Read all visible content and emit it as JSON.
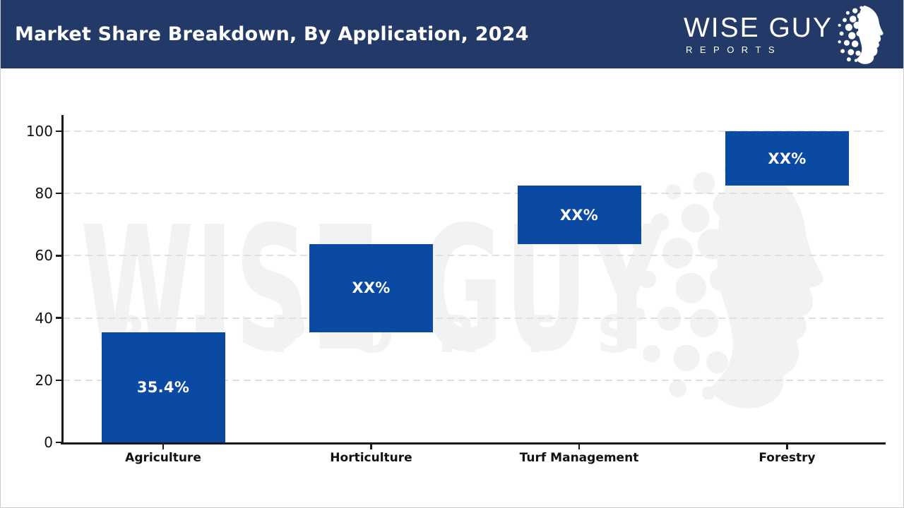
{
  "header": {
    "title": "Market Share Breakdown, By Application, 2024",
    "bg_color": "#233A68",
    "logo": {
      "line1": "WISE GUY",
      "line2": "REPORTS"
    }
  },
  "watermark": {
    "line1": "WISE GUY",
    "line2": "REPORTS"
  },
  "chart_data": {
    "type": "bar",
    "subtype": "waterfall",
    "title": "Market Share Breakdown, By Application, 2024",
    "categories": [
      "Agriculture",
      "Horticulture",
      "Turf Management",
      "Forestry"
    ],
    "segments": [
      {
        "category": "Agriculture",
        "start": 0,
        "end": 35.4,
        "label": "35.4%"
      },
      {
        "category": "Horticulture",
        "start": 35.4,
        "end": 63.7,
        "label": "XX%"
      },
      {
        "category": "Turf Management",
        "start": 63.7,
        "end": 82.5,
        "label": "XX%"
      },
      {
        "category": "Forestry",
        "start": 82.5,
        "end": 100,
        "label": "XX%"
      }
    ],
    "y_ticks": [
      0,
      20,
      40,
      60,
      80,
      100
    ],
    "ylim": [
      0,
      105
    ],
    "xlabel": "",
    "ylabel": "",
    "bar_color": "#0B4AA2",
    "grid": "horizontal dashed",
    "grid_color": "#e0e0e0",
    "legend": "none",
    "value_label_color": "#ffffff"
  }
}
